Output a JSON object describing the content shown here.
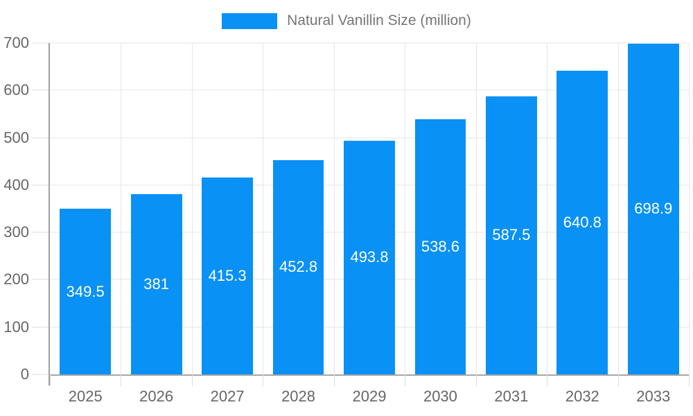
{
  "legend": {
    "label": "Natural Vanillin Size (million)"
  },
  "chart_data": {
    "type": "bar",
    "title": "Natural Vanillin Size (million)",
    "series_name": "Natural Vanillin Size (million)",
    "categories": [
      "2025",
      "2026",
      "2027",
      "2028",
      "2029",
      "2030",
      "2031",
      "2032",
      "2033"
    ],
    "values": [
      349.5,
      381,
      415.3,
      452.8,
      493.8,
      538.6,
      587.5,
      640.8,
      698.9
    ],
    "xlabel": "",
    "ylabel": "",
    "ylim": [
      0,
      700
    ],
    "yticks": [
      0,
      100,
      200,
      300,
      400,
      500,
      600,
      700
    ],
    "grid": true,
    "legend_position": "top-center",
    "value_labels": "centered-white"
  },
  "colors": {
    "bar": "#0991f5",
    "grid": "#e6e6e6",
    "tick": "#dcdcdc",
    "axis": "#9e9e9e",
    "tick_label": "#666666",
    "legend_text": "#757575",
    "value_label": "#ffffff",
    "background": "#ffffff"
  }
}
